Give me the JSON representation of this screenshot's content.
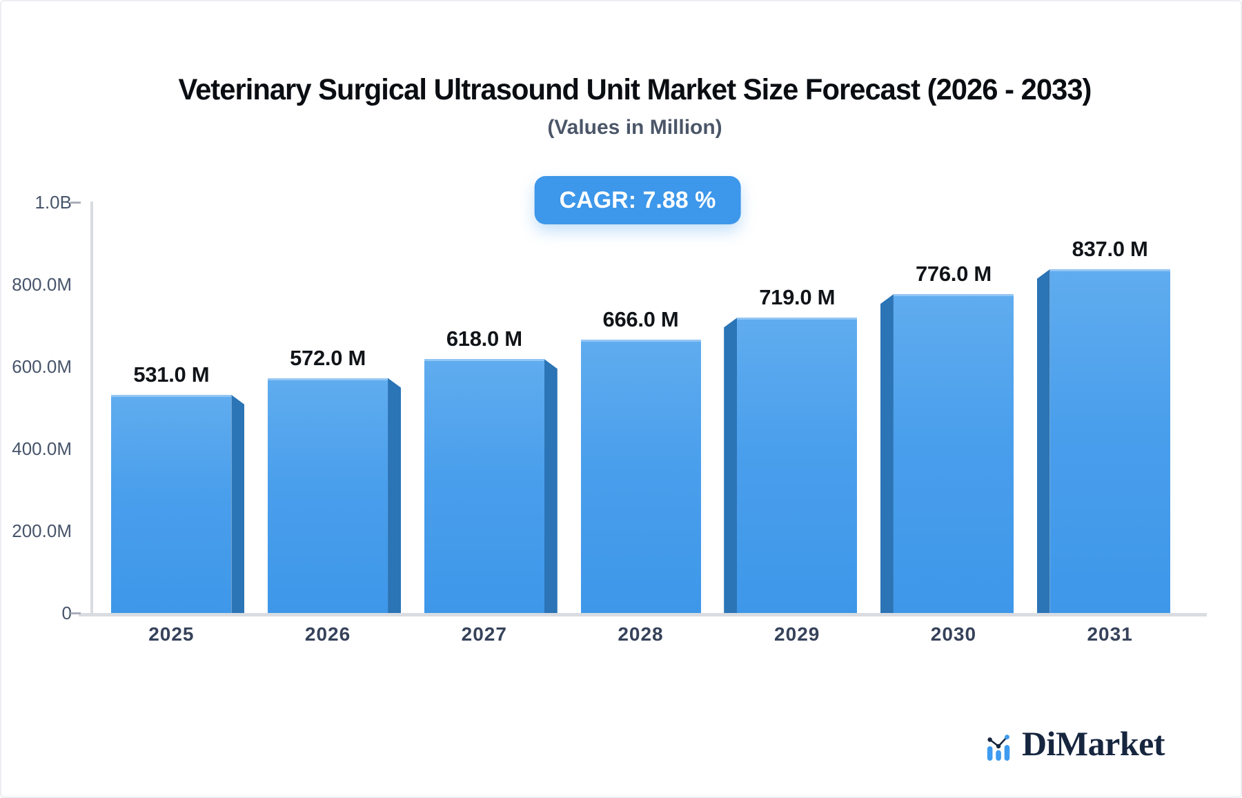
{
  "title": "Veterinary Surgical Ultrasound Unit Market Size Forecast (2026 - 2033)",
  "subtitle": "(Values in Million)",
  "badge": {
    "label": "CAGR: 7.88 %"
  },
  "logo": {
    "name": "DiMarket"
  },
  "colors": {
    "bar_face_top": "#60acef",
    "bar_face_bottom": "#3e97e9",
    "bar_side": "#2b74b6",
    "badge_bg": "#3d97ea",
    "axis": "#d9dce1",
    "value_label": "#101418",
    "category_label": "#36425a",
    "y_label": "#47546a",
    "logo_navy": "#17263f",
    "logo_blue": "#3f9bf0"
  },
  "chart_data": {
    "type": "bar",
    "title": "Veterinary Surgical Ultrasound Unit Market Size Forecast (2026 - 2033)",
    "subtitle": "(Values in Million)",
    "categories": [
      "2025",
      "2026",
      "2027",
      "2028",
      "2029",
      "2030",
      "2031"
    ],
    "values": [
      531,
      572,
      618,
      666,
      719,
      776,
      837
    ],
    "value_labels": [
      "531.0 M",
      "572.0 M",
      "618.0 M",
      "666.0 M",
      "719.0 M",
      "776.0 M",
      "837.0 M"
    ],
    "xlabel": "",
    "ylabel": "",
    "ylim": [
      0,
      1000
    ],
    "grid": false,
    "legend": false,
    "annotation": "CAGR: 7.88 %",
    "y_ticks": [
      {
        "label": "1.0B",
        "value": 1000,
        "dash": true
      },
      {
        "label": "800.0M",
        "value": 800,
        "dash": false
      },
      {
        "label": "600.0M",
        "value": 600,
        "dash": false
      },
      {
        "label": "400.0M",
        "value": 400,
        "dash": false
      },
      {
        "label": "200.0M",
        "value": 200,
        "dash": false
      },
      {
        "label": "0",
        "value": 0,
        "dash": true
      }
    ]
  }
}
